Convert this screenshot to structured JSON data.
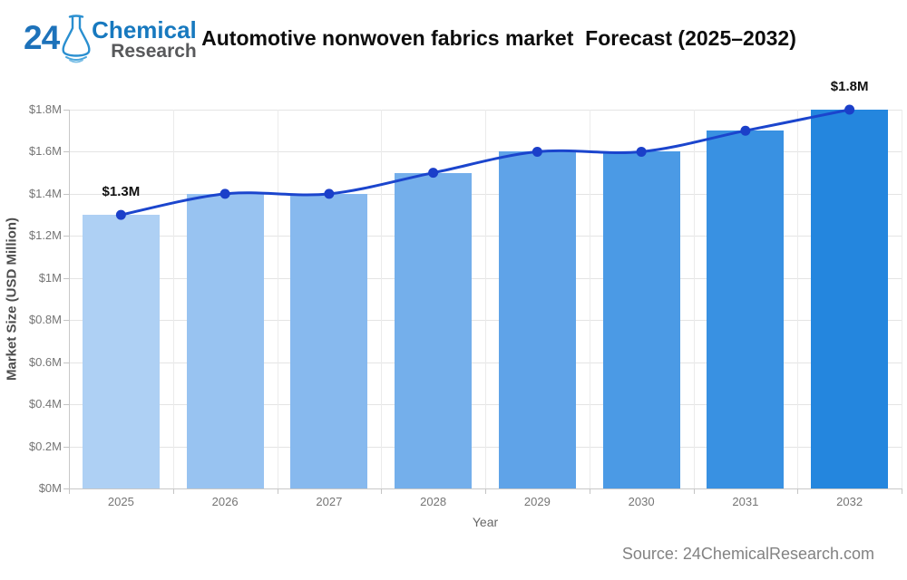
{
  "logo": {
    "number": "24",
    "word1": "Chemical",
    "word2": "Research"
  },
  "title": "Automotive nonwoven fabrics market  Forecast (2025–2032)",
  "source": "Source: 24ChemicalResearch.com",
  "chart_data": {
    "type": "bar",
    "overlay": "line",
    "title": "Automotive nonwoven fabrics market  Forecast (2025–2032)",
    "categories": [
      "2025",
      "2026",
      "2027",
      "2028",
      "2029",
      "2030",
      "2031",
      "2032"
    ],
    "values": [
      1.3,
      1.4,
      1.4,
      1.5,
      1.6,
      1.6,
      1.7,
      1.8
    ],
    "series": [
      {
        "name": "Market Size bars",
        "type": "bar",
        "values": [
          1.3,
          1.4,
          1.4,
          1.5,
          1.6,
          1.6,
          1.7,
          1.8
        ]
      },
      {
        "name": "Trend line",
        "type": "line",
        "values": [
          1.3,
          1.4,
          1.4,
          1.5,
          1.6,
          1.6,
          1.7,
          1.8
        ]
      }
    ],
    "xlabel": "Year",
    "ylabel": "Market Size (USD Million)",
    "ylim": [
      0,
      1.8
    ],
    "ytick_step": 0.2,
    "ytick_labels": [
      "$0M",
      "$0.2M",
      "$0.4M",
      "$0.6M",
      "$0.8M",
      "$1M",
      "$1.2M",
      "$1.4M",
      "$1.6M",
      "$1.8M"
    ],
    "grid": true,
    "legend": "none",
    "bar_colors": [
      "#aed0f4",
      "#98c3f1",
      "#87b9ee",
      "#74afeb",
      "#5fa3e8",
      "#4b9ae5",
      "#3991e2",
      "#2486de"
    ],
    "line_color": "#1b45cd",
    "marker_color": "#1b3fc9",
    "annotations": [
      {
        "index": 0,
        "text": "$1.3M"
      },
      {
        "index": 7,
        "text": "$1.8M"
      }
    ]
  }
}
